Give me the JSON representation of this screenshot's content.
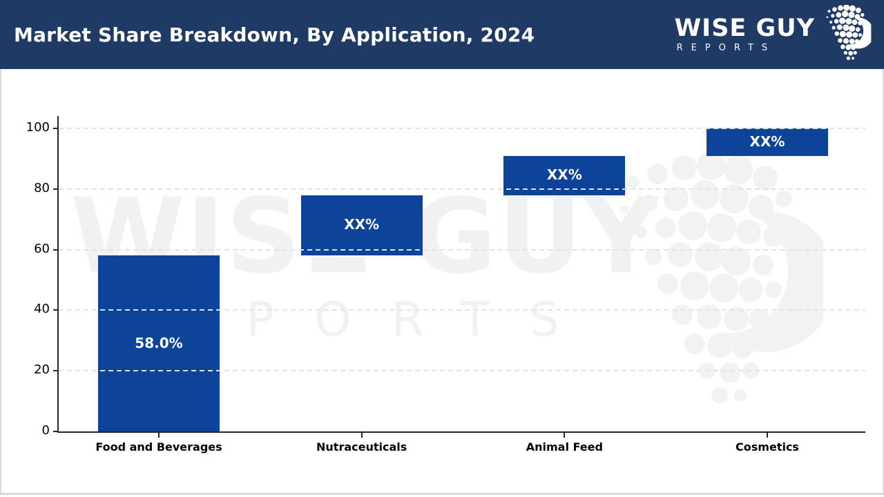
{
  "header": {
    "title": "Market Share Breakdown, By Application, 2024",
    "logo": {
      "line1": "WISE GUY",
      "line2": "REPORTS"
    }
  },
  "watermark": {
    "line1": "WISE GUY",
    "line2": "REPORTS"
  },
  "colors": {
    "header_bg": "#203a66",
    "bar": "#0d4399",
    "bar_label": "#ffffff",
    "axis": "#262626",
    "gridline": "#e3e3e3",
    "watermark": "#f1f1f4"
  },
  "chart_data": {
    "type": "bar",
    "subtype": "waterfall",
    "title": "Market Share Breakdown, By Application, 2024",
    "categories": [
      "Food and Beverages",
      "Nutraceuticals",
      "Animal Feed",
      "Cosmetics"
    ],
    "segments": [
      {
        "category": "Food and Beverages",
        "start": 0,
        "end": 58,
        "label": "58.0%"
      },
      {
        "category": "Nutraceuticals",
        "start": 58,
        "end": 78,
        "label": "XX%"
      },
      {
        "category": "Animal Feed",
        "start": 78,
        "end": 91,
        "label": "XX%"
      },
      {
        "category": "Cosmetics",
        "start": 91,
        "end": 100,
        "label": "XX%"
      }
    ],
    "yticks": [
      0,
      20,
      40,
      60,
      80,
      100
    ],
    "ylim": [
      0,
      104
    ],
    "xlabel": "",
    "ylabel": "",
    "grid": {
      "horizontal": true,
      "style": "dashed"
    },
    "legend": null
  }
}
